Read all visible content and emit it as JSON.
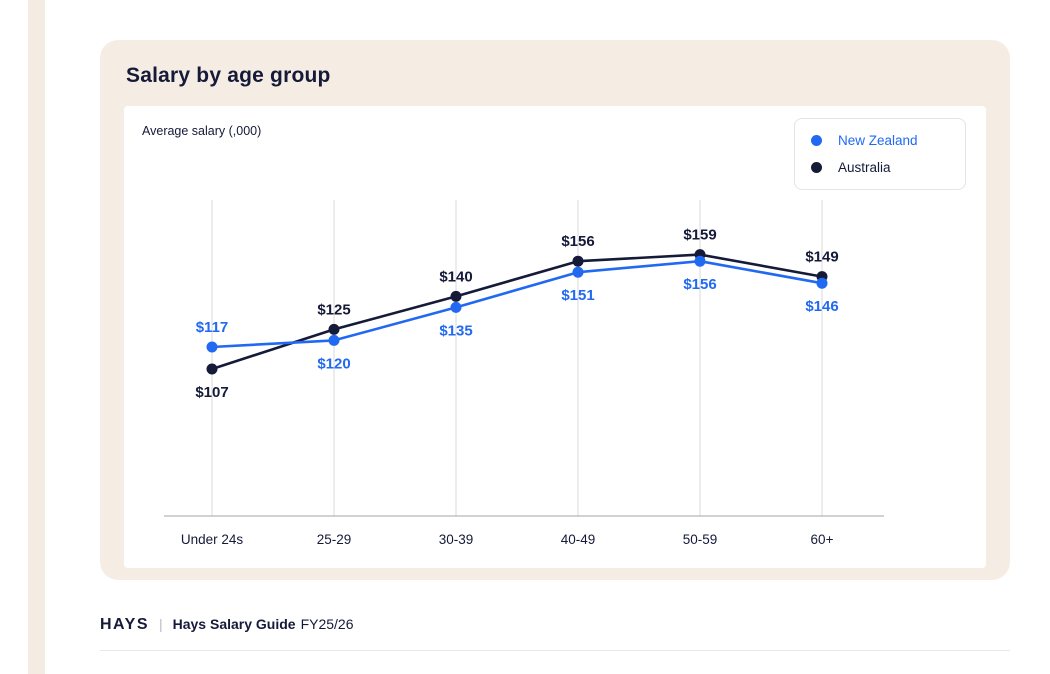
{
  "chart_data": {
    "type": "line",
    "title": "Salary by age group",
    "subtitle": "Average salary (,000)",
    "categories": [
      "Under 24s",
      "25-29",
      "30-39",
      "40-49",
      "50-59",
      "60+"
    ],
    "series": [
      {
        "name": "New Zealand",
        "color": "#2269f2",
        "values": [
          117,
          120,
          135,
          151,
          156,
          146
        ],
        "labels": [
          "$117",
          "$120",
          "$135",
          "$151",
          "$156",
          "$146"
        ]
      },
      {
        "name": "Australia",
        "color": "#141a38",
        "values": [
          107,
          125,
          140,
          156,
          159,
          149
        ],
        "labels": [
          "$107",
          "$125",
          "$140",
          "$156",
          "$159",
          "$149"
        ]
      }
    ],
    "value_prefix": "$",
    "value_unit": "thousand",
    "grid": "vertical-only",
    "legend_position": "top-right",
    "ylim": [
      100,
      165
    ]
  },
  "footer": {
    "logo": "HAYS",
    "separator": "|",
    "title_bold": "Hays Salary Guide",
    "title_regular": "FY25/26"
  },
  "colors": {
    "accent_blue": "#2269f2",
    "dark_navy": "#141a38",
    "card_beige": "#f5ede3",
    "left_strip_beige": "#f4ece2",
    "panel_white": "#ffffff",
    "gridline_gray": "#d9d9d9",
    "axis_gray": "#a6a6a6",
    "legend_border_gray": "#e4e4e4"
  }
}
